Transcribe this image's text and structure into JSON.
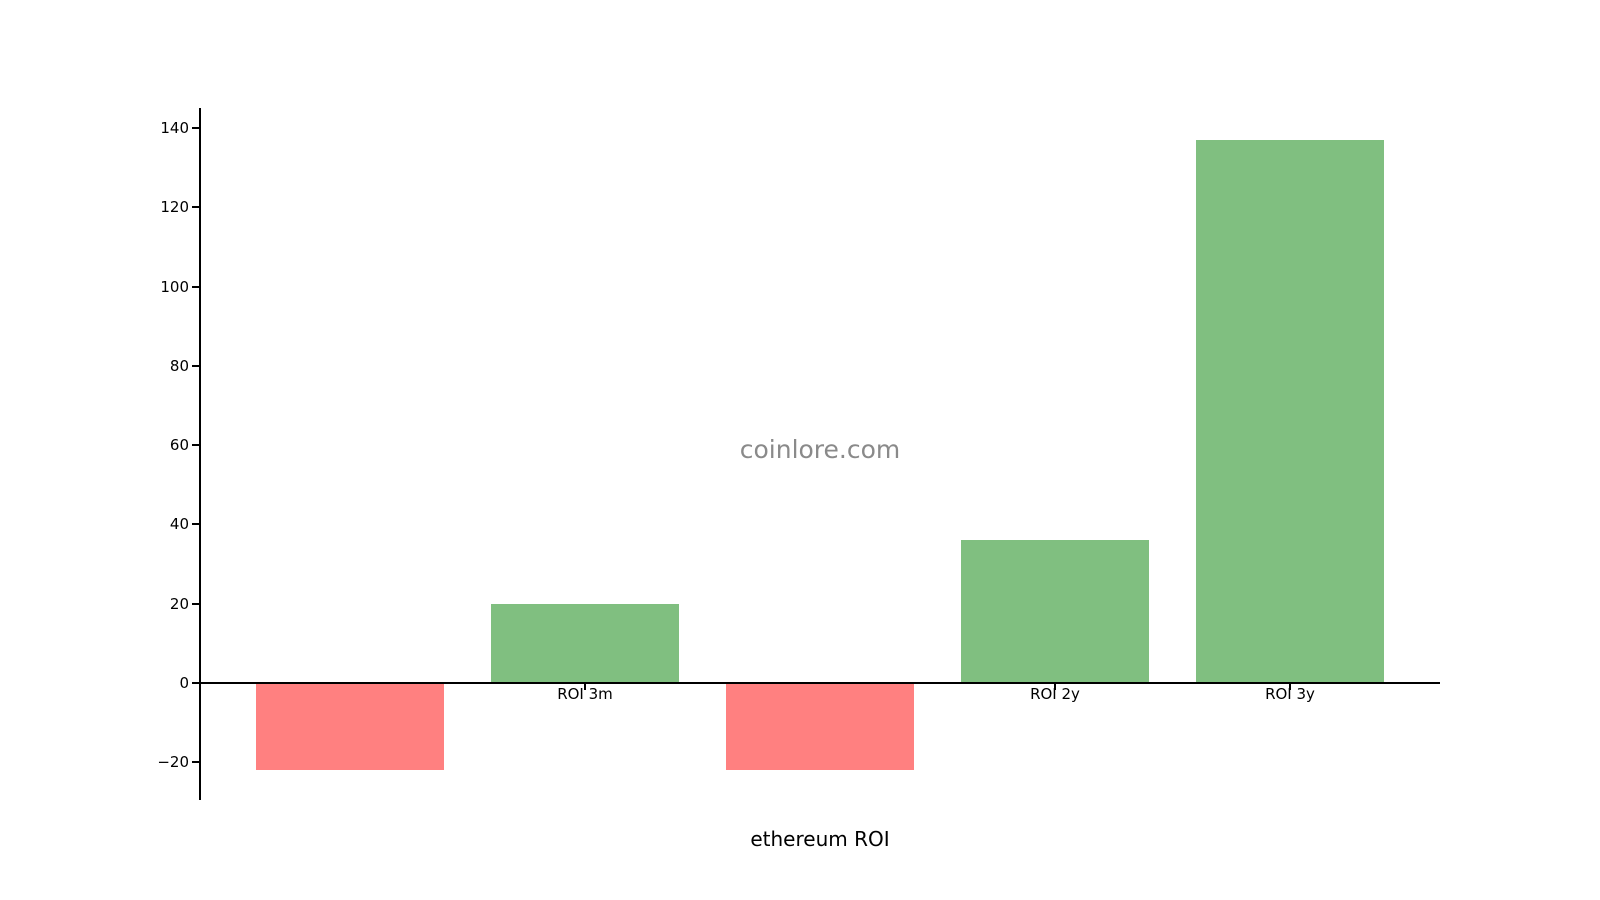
{
  "chart_data": {
    "type": "bar",
    "title": "",
    "xlabel": "ethereum ROI",
    "ylabel": "",
    "watermark": "coinlore.com",
    "categories": [
      "",
      "ROI 3m",
      "",
      "ROI 2y",
      "ROI 3y"
    ],
    "series": [
      {
        "name": "ethereum ROI",
        "values": [
          -22,
          20,
          -22,
          36,
          137
        ]
      }
    ],
    "yticks": [
      -20,
      0,
      20,
      40,
      60,
      80,
      100,
      120,
      140
    ],
    "ytick_labels": [
      "−20",
      "0",
      "20",
      "40",
      "60",
      "80",
      "100",
      "120",
      "140"
    ],
    "ylim": [
      -29.5,
      145
    ],
    "grid": false,
    "legend": "none",
    "positive_color": "#80bf80",
    "negative_color": "#ff8080",
    "axis_color": "#000000",
    "text_color": "#000000",
    "watermark_color": "#8a8a8a"
  }
}
